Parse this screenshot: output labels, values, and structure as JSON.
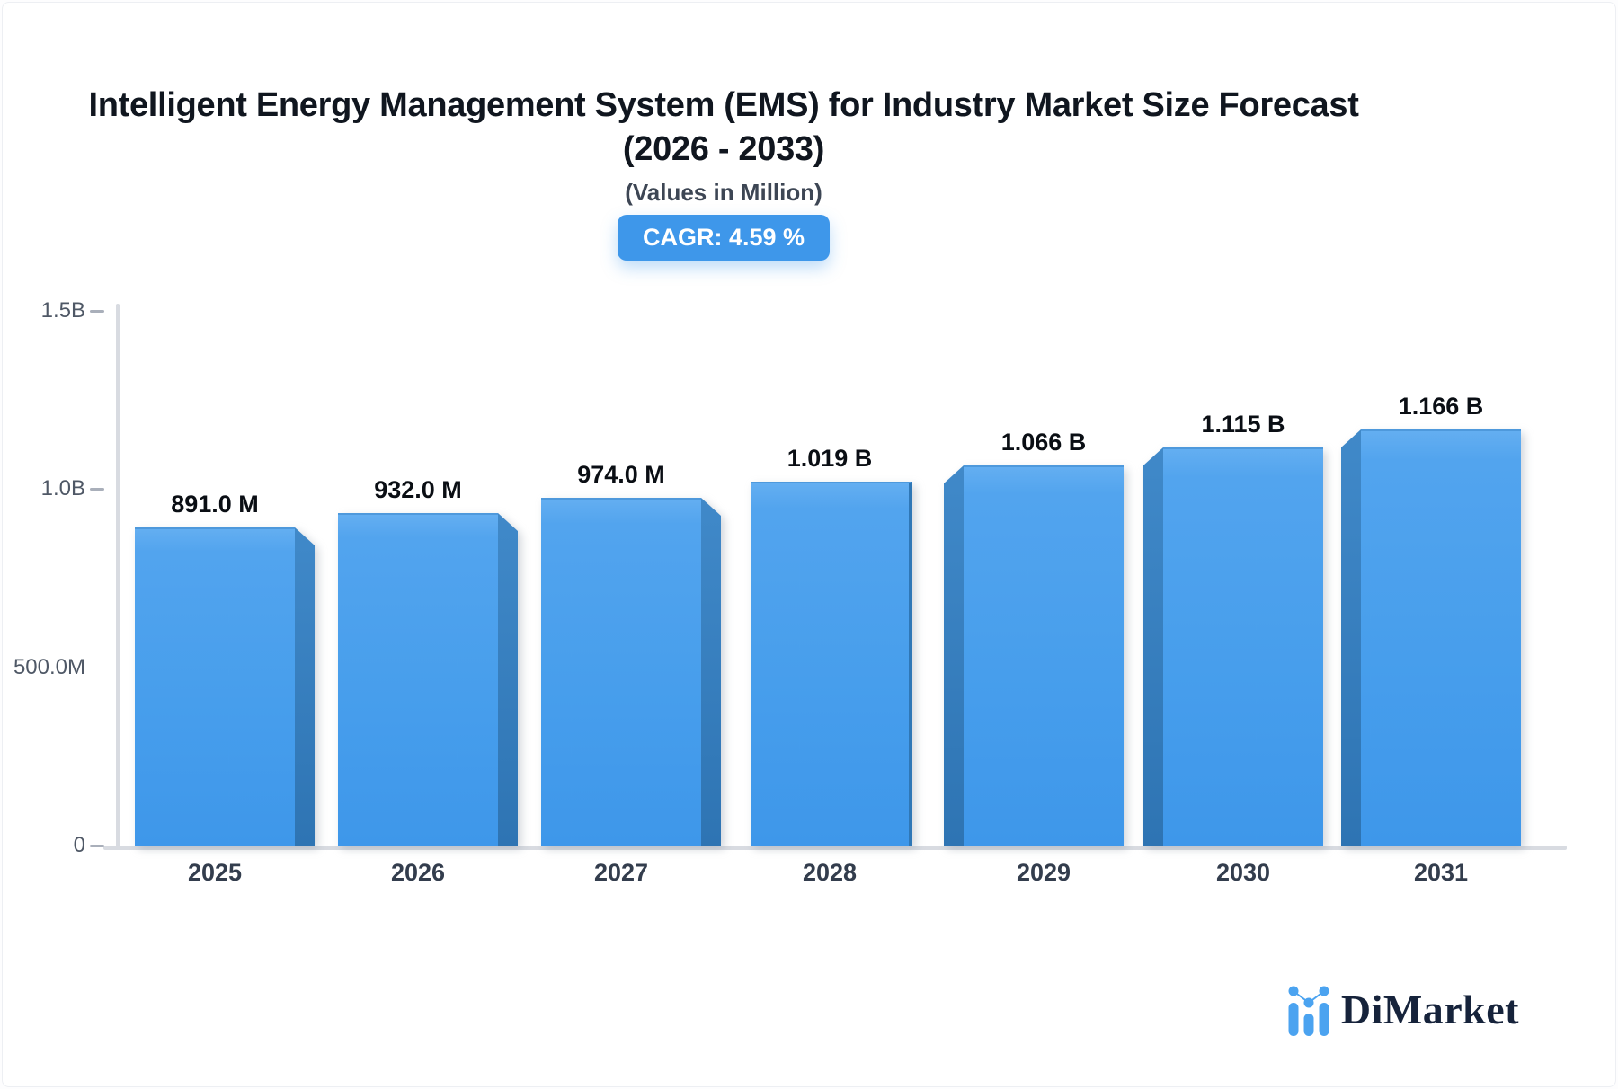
{
  "chart_data": {
    "type": "bar",
    "title": "Intelligent Energy Management System (EMS) for Industry Market Size Forecast (2026 - 2033)",
    "title_line1": "Intelligent Energy Management System (EMS) for Industry Market Size Forecast",
    "title_line2": "(2026 - 2033)",
    "subtitle": "(Values in Million)",
    "cagr_label": "CAGR: 4.59 %",
    "categories": [
      "2025",
      "2026",
      "2027",
      "2028",
      "2029",
      "2030",
      "2031"
    ],
    "values_millions": [
      891,
      932,
      974,
      1019,
      1066,
      1115,
      1166
    ],
    "value_labels": [
      "891.0 M",
      "932.0 M",
      "974.0 M",
      "1.019 B",
      "1.066 B",
      "1.115 B",
      "1.166 B"
    ],
    "xlabel": "",
    "ylabel": "",
    "y_axis": {
      "max_millions": 1500,
      "min_millions": 0,
      "grid": false,
      "ticks": [
        {
          "label": "1.5B",
          "value_millions": 1500,
          "has_dash": true
        },
        {
          "label": "1.0B",
          "value_millions": 1000,
          "has_dash": true
        },
        {
          "label": "500.0M",
          "value_millions": 500,
          "has_dash": false
        },
        {
          "label": "0",
          "value_millions": 0,
          "has_dash": true
        }
      ]
    },
    "legend_position": "none",
    "colors": {
      "bar_face": "#459CEB",
      "bar_face_light": "#63AEF1",
      "bar_side_face": "#2F77B6",
      "axis_line": "#D8DBE1",
      "tick_text": "#4F5866",
      "category_text": "#333D4D",
      "value_text": "#0A0E14",
      "badge_background": "#3E97EA",
      "badge_text": "#FFFFFF",
      "title_text": "#10161F"
    }
  },
  "branding": {
    "logo_text": "DiMarket",
    "logo_icon": "mini-bar-chart-icon",
    "logo_icon_color": "#4BA3F0",
    "logo_text_color": "#16233B"
  }
}
